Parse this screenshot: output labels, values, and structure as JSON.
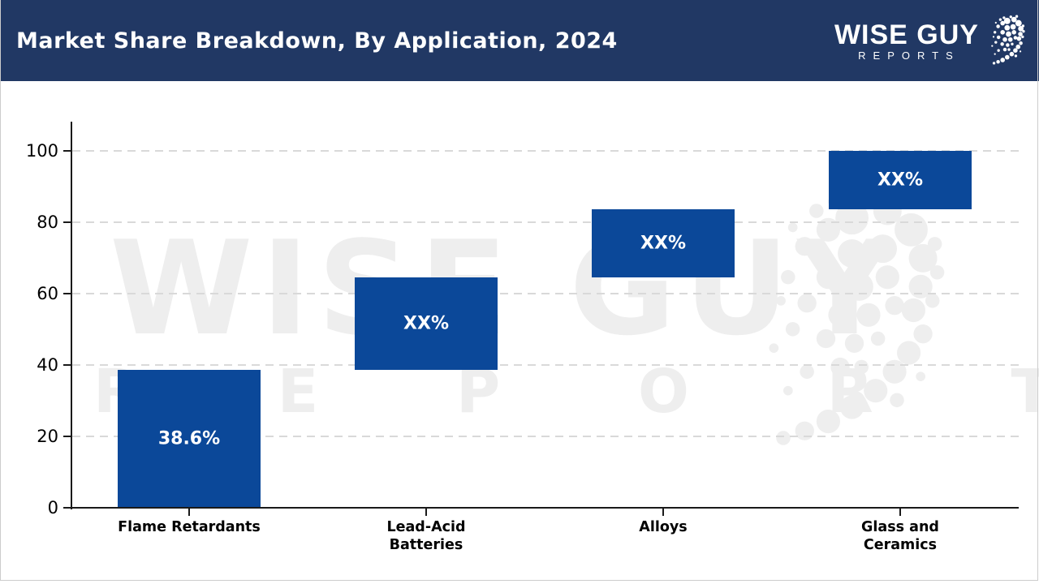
{
  "header": {
    "title": "Market Share Breakdown, By Application, 2024",
    "logo": {
      "line1": "WISE GUY",
      "line2": "REPORTS"
    }
  },
  "watermark": {
    "line1": "WISE GUY",
    "line2": "REPORTS"
  },
  "icons": {
    "logo_face": "dot-matrix-face-profile",
    "watermark_face": "dot-matrix-face-profile"
  },
  "colors": {
    "header_bg": "#213864",
    "bar": "#0b4899",
    "grid": "#d9d9d9",
    "axis": "#1a1a1a",
    "watermark": "#eeeeee",
    "bar_label_text": "#ffffff",
    "frame_border": "#cccccc"
  },
  "chart_data": {
    "type": "bar",
    "subtype": "stacked-waterfall",
    "title": "Market Share Breakdown, By Application, 2024",
    "categories": [
      "Flame Retardants",
      "Lead-Acid\nBatteries",
      "Alloys",
      "Glass and Ceramics"
    ],
    "segments": [
      {
        "category": "Flame Retardants",
        "start": 0,
        "end": 38.6,
        "label": "38.6%"
      },
      {
        "category": "Lead-Acid Batteries",
        "start": 38.6,
        "end": 64.5,
        "label": "XX%"
      },
      {
        "category": "Alloys",
        "start": 64.5,
        "end": 83.6,
        "label": "XX%"
      },
      {
        "category": "Glass and Ceramics",
        "start": 83.6,
        "end": 100,
        "label": "XX%"
      }
    ],
    "y_ticks": [
      0,
      20,
      40,
      60,
      80,
      100
    ],
    "ylim": [
      0,
      108
    ],
    "xlabel": "",
    "ylabel": "",
    "grid": "horizontal-dashed",
    "legend": null
  }
}
